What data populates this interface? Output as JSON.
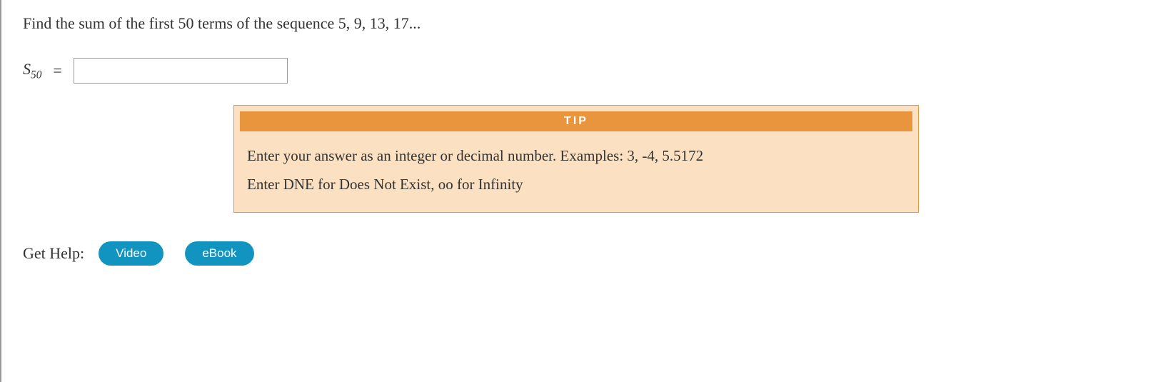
{
  "question": {
    "text": "Find the sum of the first 50 terms of the sequence 5, 9, 13, 17..."
  },
  "answer": {
    "label_base": "S",
    "label_sub": "50",
    "equals": "=",
    "value": ""
  },
  "tip": {
    "header": "TIP",
    "line1": "Enter your answer as an integer or decimal number. Examples: 3, -4, 5.5172",
    "line2": "Enter DNE for Does Not Exist, oo for Infinity",
    "border_color": "#e8953e",
    "bg_color": "#fbe0c1",
    "header_bg": "#e8953e",
    "header_text_color": "#ffffff"
  },
  "help": {
    "label": "Get Help:",
    "video_label": "Video",
    "ebook_label": "eBook",
    "button_bg": "#1294c1",
    "button_text_color": "#ffffff"
  }
}
